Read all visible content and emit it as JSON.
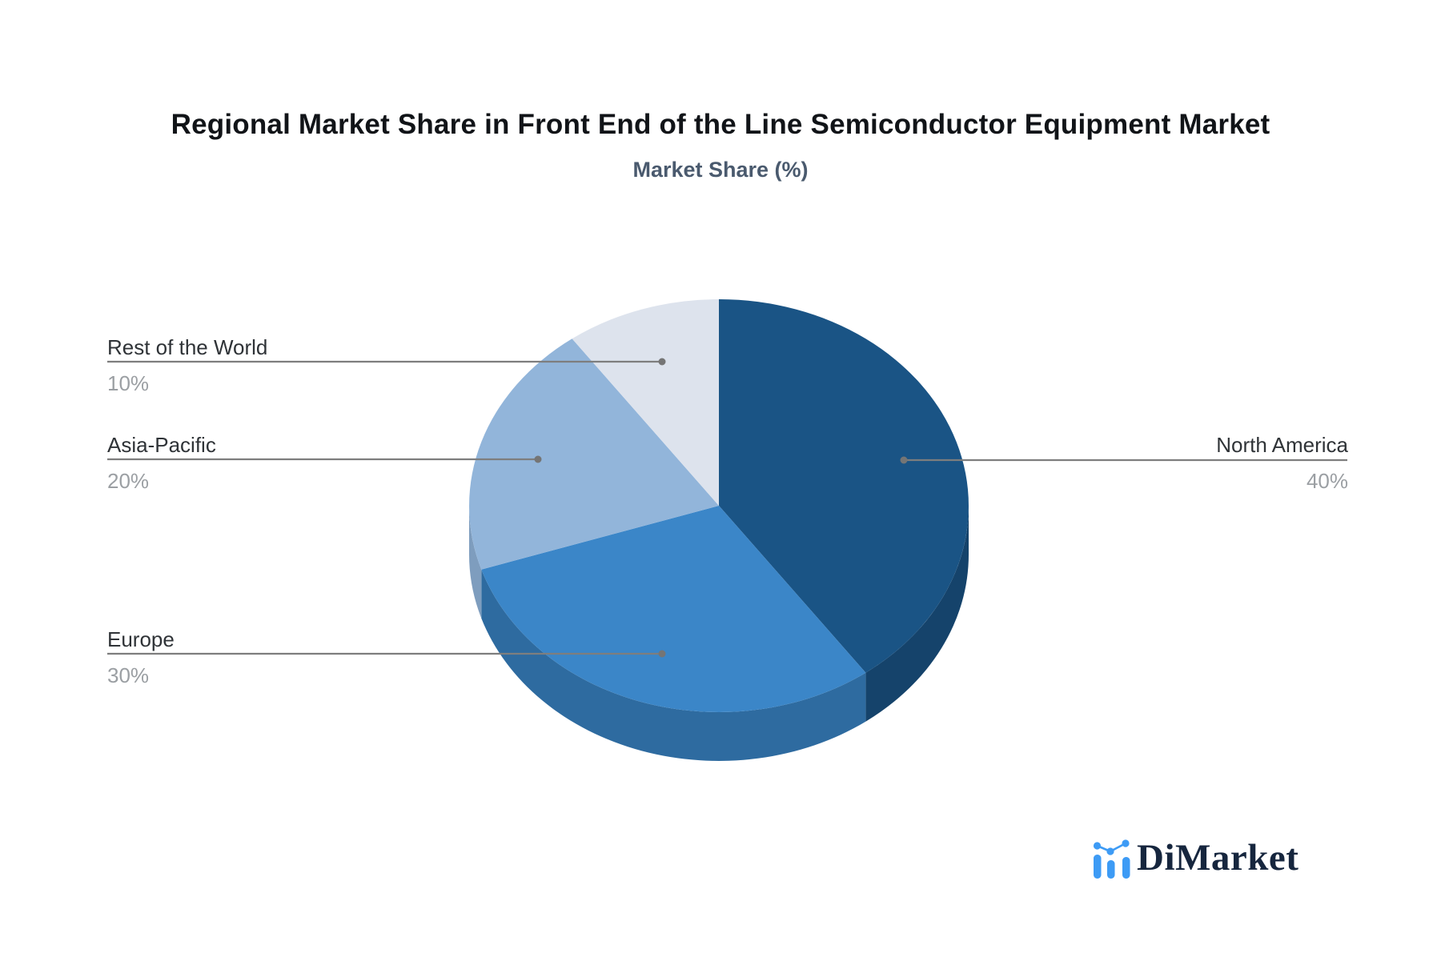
{
  "title": "Regional Market Share in Front End of the Line Semiconductor Equipment Market",
  "subtitle": "Market Share (%)",
  "chart_data": {
    "type": "pie",
    "title": "Regional Market Share in Front End of the Line Semiconductor Equipment Market",
    "subtitle": "Market Share (%)",
    "unit": "%",
    "categories": [
      "North America",
      "Europe",
      "Asia-Pacific",
      "Rest of the World"
    ],
    "values": [
      40,
      30,
      20,
      10
    ],
    "start_angle_deg": 90,
    "direction": "clockwise",
    "style": "3d-pie",
    "colors": [
      "#1A5485",
      "#3B86C8",
      "#92B5DA",
      "#DDE3ED"
    ],
    "side_colors": [
      "#15436B",
      "#2E6BA0",
      "#7E9DBE",
      "#C5CEDD"
    ],
    "legend_position": "callout-labels",
    "labels": [
      {
        "name": "North America",
        "value_label": "40%"
      },
      {
        "name": "Europe",
        "value_label": "30%"
      },
      {
        "name": "Asia-Pacific",
        "value_label": "20%"
      },
      {
        "name": "Rest of the World",
        "value_label": "10%"
      }
    ]
  },
  "leader_color": "#7E7E7E",
  "brand": {
    "name": "DiMarket",
    "icon": "bar-line-chart-icon",
    "icon_color": "#3D9BF5",
    "text_color": "#16263E"
  }
}
